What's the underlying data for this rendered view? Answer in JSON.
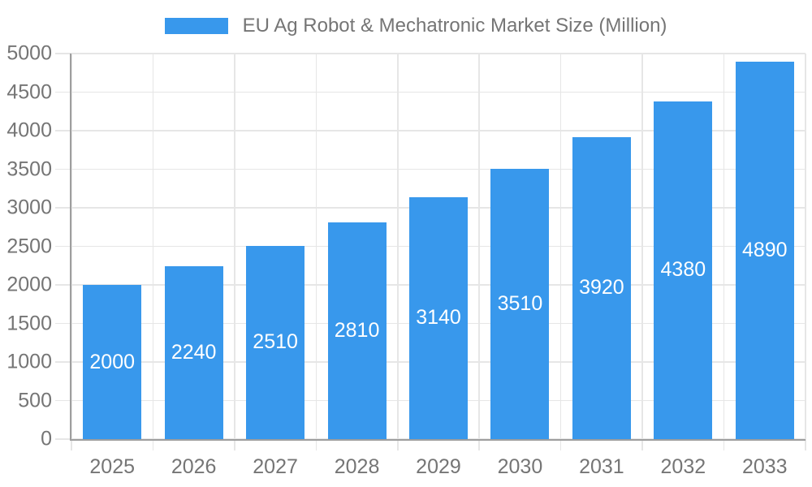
{
  "chart_data": {
    "type": "bar",
    "title": "EU Ag Robot & Mechatronic Market Size (Million)",
    "categories": [
      "2025",
      "2026",
      "2027",
      "2028",
      "2029",
      "2030",
      "2031",
      "2032",
      "2033"
    ],
    "values": [
      2000,
      2240,
      2510,
      2810,
      3140,
      3510,
      3920,
      4380,
      4890
    ],
    "series": [
      {
        "name": "EU Ag Robot & Mechatronic Market Size (Million)",
        "values": [
          2000,
          2240,
          2510,
          2810,
          3140,
          3510,
          3920,
          4380,
          4890
        ]
      }
    ],
    "xlabel": "",
    "ylabel": "",
    "ylim": [
      0,
      5000
    ],
    "yticks": [
      0,
      500,
      1000,
      1500,
      2000,
      2500,
      3000,
      3500,
      4000,
      4500,
      5000
    ],
    "grid": true,
    "legend_position": "top",
    "bar_label_position": "inside-center"
  },
  "style": {
    "bar_color": "#3898EC",
    "bar_label_color": "#FFFFFF",
    "axis_line_color": "#9E9E9E",
    "grid_color": "#E6E6E6",
    "text_color": "#757575",
    "background": "#FFFFFF"
  }
}
